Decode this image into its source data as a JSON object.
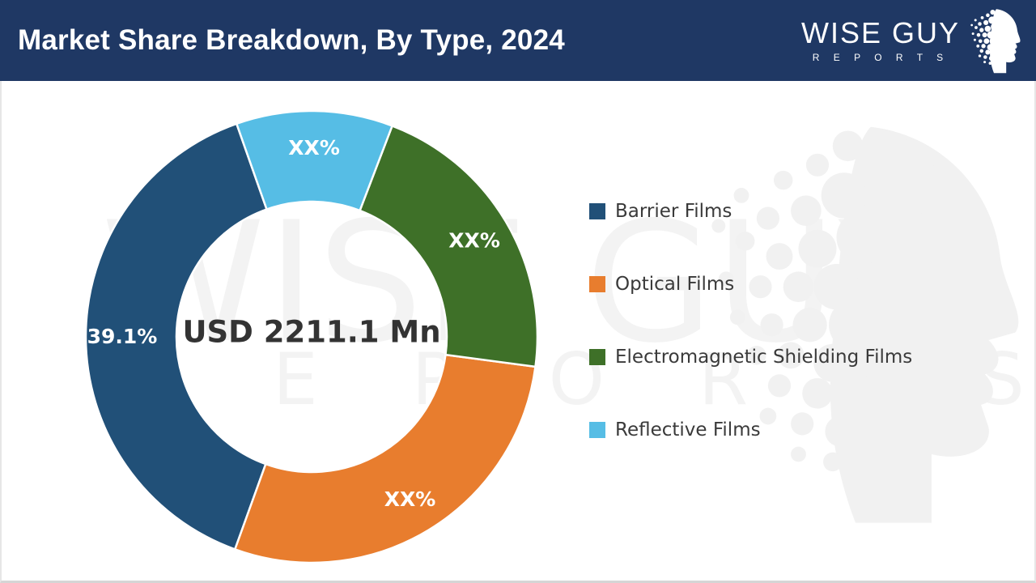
{
  "header": {
    "title": "Market Share Breakdown, By Type, 2024",
    "logo": {
      "line1": "WISE GUY",
      "line2": "R E P O R T S"
    }
  },
  "watermark": {
    "line1": "WISE GUY",
    "line2": "R E P O R T S"
  },
  "chart_data": {
    "type": "pie",
    "title": "Market Share Breakdown, By Type, 2024",
    "center_total": "USD 2211.1 Mn",
    "units": "percent of market share",
    "categories": [
      "Barrier Films",
      "Optical Films",
      "Electromagnetic Shielding Films",
      "Reflective Films"
    ],
    "values": [
      39.1,
      28.4,
      21.3,
      11.2
    ],
    "slice_labels": [
      "39.1%",
      "XX%",
      "XX%",
      "XX%"
    ],
    "colors": [
      "#215078",
      "#E87D2E",
      "#3E7028",
      "#56BDE5"
    ],
    "donut": true,
    "inner_radius_ratio": 0.6,
    "start_angle_deg": 109.4,
    "counterclockwise": true,
    "legend_position": "right"
  },
  "legend": {
    "items": [
      {
        "label": "Barrier Films",
        "color": "#215078"
      },
      {
        "label": "Optical Films",
        "color": "#E87D2E"
      },
      {
        "label": "Electromagnetic Shielding Films",
        "color": "#3E7028"
      },
      {
        "label": "Reflective Films",
        "color": "#56BDE5"
      }
    ]
  },
  "colors": {
    "header_bg": "#1F3864",
    "title_text": "#ffffff",
    "center_text": "#333333",
    "legend_text": "#3a3a3a",
    "slice_label_text": "#ffffff",
    "watermark": "#f3f3f3",
    "frame_border": "#d5d5d5"
  }
}
